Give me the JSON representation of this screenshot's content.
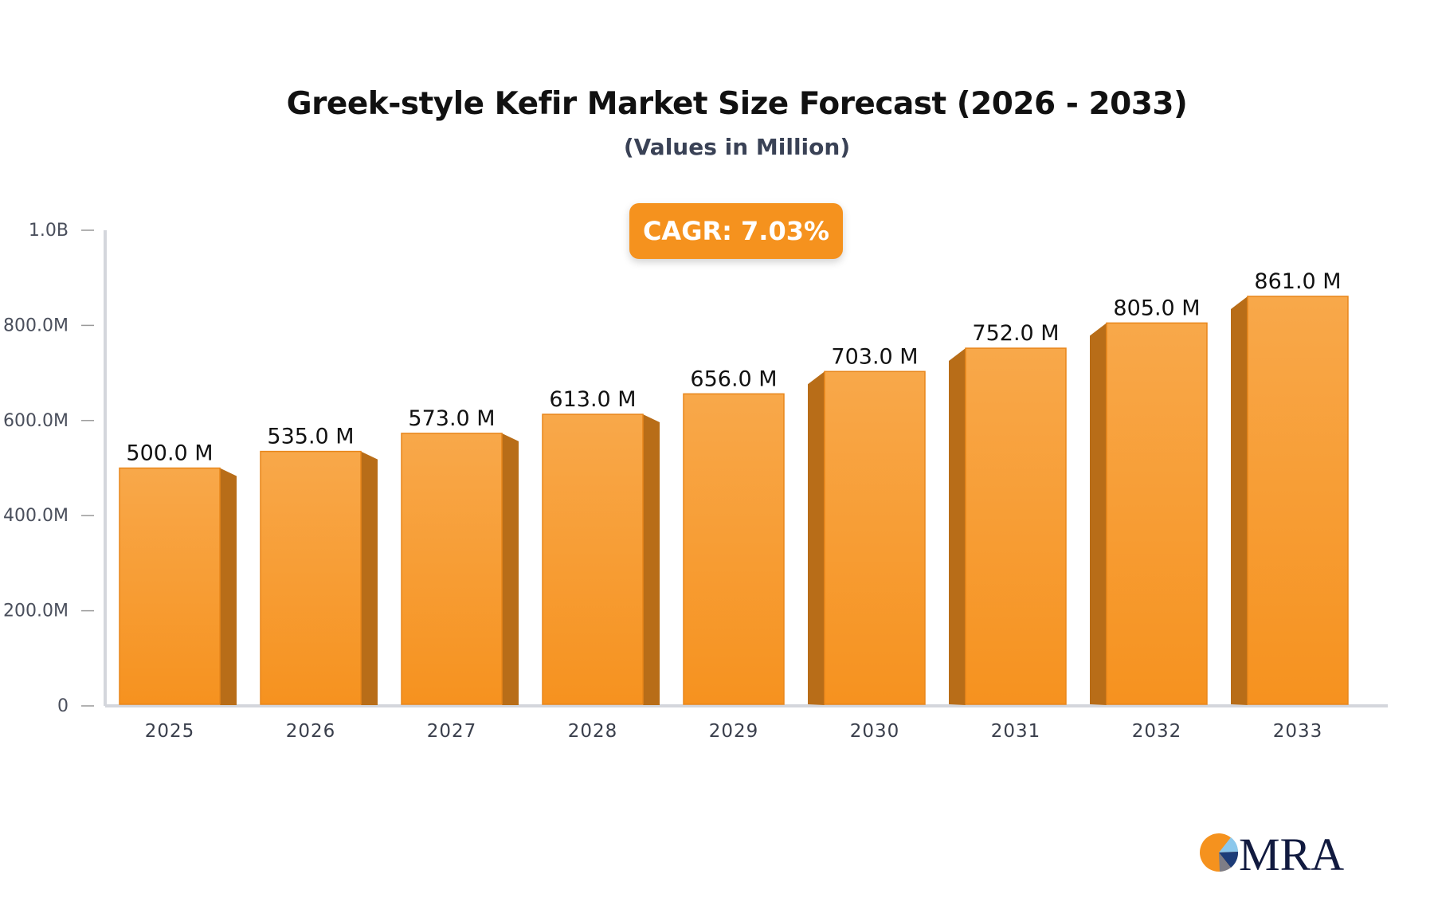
{
  "chart_data": {
    "type": "bar",
    "title": "Greek-style Kefir Market Size Forecast (2026 - 2033)",
    "subtitle": "(Values in Million)",
    "annotation": "CAGR: 7.03%",
    "categories": [
      "2025",
      "2026",
      "2027",
      "2028",
      "2029",
      "2030",
      "2031",
      "2032",
      "2033"
    ],
    "values": [
      500.0,
      535.0,
      573.0,
      613.0,
      656.0,
      703.0,
      752.0,
      805.0,
      861.0
    ],
    "data_labels": [
      "500.0 M",
      "535.0 M",
      "573.0 M",
      "613.0 M",
      "656.0 M",
      "703.0 M",
      "752.0 M",
      "805.0 M",
      "861.0 M"
    ],
    "unit": "Million",
    "ylim": [
      0,
      1000
    ],
    "yticks": [
      0,
      200,
      400,
      600,
      800,
      1000
    ],
    "ytick_labels": [
      "0",
      "200.0M",
      "400.0M",
      "600.0M",
      "800.0M",
      "1.0B"
    ],
    "grid": false,
    "colors": {
      "bar_front": "#f7a040",
      "bar_side": "#b86d18",
      "badge": "#f5921e",
      "axis": "#d4d6dc"
    }
  },
  "logo": {
    "text": "MRA"
  }
}
